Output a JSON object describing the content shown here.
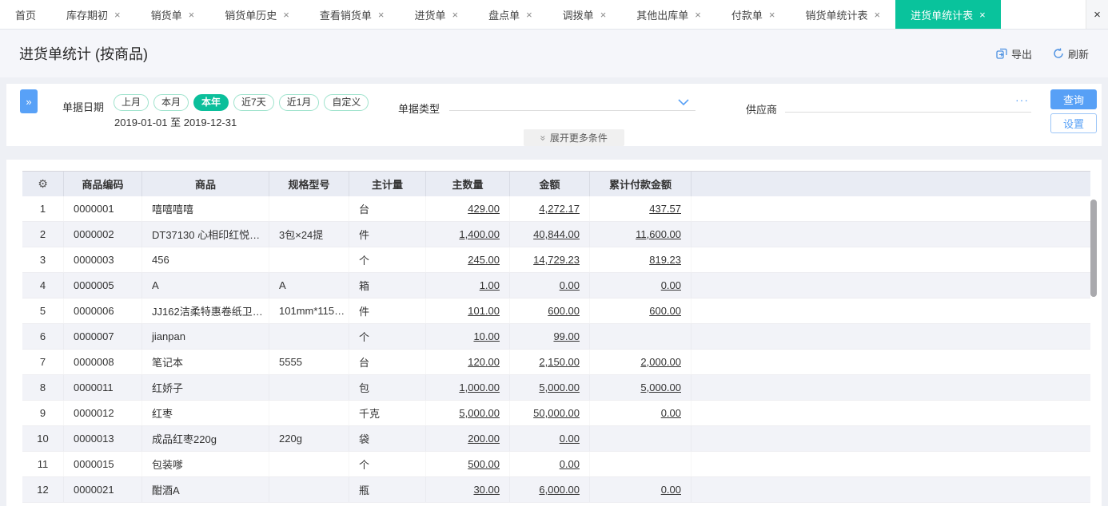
{
  "tabbar": {
    "tabs": [
      {
        "label": "首页",
        "closable": false,
        "active": false
      },
      {
        "label": "库存期初",
        "closable": true,
        "active": false
      },
      {
        "label": "销货单",
        "closable": true,
        "active": false
      },
      {
        "label": "销货单历史",
        "closable": true,
        "active": false
      },
      {
        "label": "查看销货单",
        "closable": true,
        "active": false
      },
      {
        "label": "进货单",
        "closable": true,
        "active": false
      },
      {
        "label": "盘点单",
        "closable": true,
        "active": false
      },
      {
        "label": "调拨单",
        "closable": true,
        "active": false
      },
      {
        "label": "其他出库单",
        "closable": true,
        "active": false
      },
      {
        "label": "付款单",
        "closable": true,
        "active": false
      },
      {
        "label": "销货单统计表",
        "closable": true,
        "active": false
      },
      {
        "label": "进货单统计表",
        "closable": true,
        "active": true
      }
    ],
    "close_all_icon": "×"
  },
  "header": {
    "title": "进货单统计 (按商品)",
    "export_label": "导出",
    "refresh_label": "刷新"
  },
  "filters": {
    "collapse_icon": "»",
    "date_label": "单据日期",
    "date_presets": [
      {
        "label": "上月",
        "selected": false
      },
      {
        "label": "本月",
        "selected": false
      },
      {
        "label": "本年",
        "selected": true
      },
      {
        "label": "近7天",
        "selected": false
      },
      {
        "label": "近1月",
        "selected": false
      },
      {
        "label": "自定义",
        "selected": false
      }
    ],
    "date_range": "2019-01-01 至 2019-12-31",
    "doc_type_label": "单据类型",
    "supplier_label": "供应商",
    "supplier_more_icon": "···",
    "query_button": "查询",
    "settings_button": "设置",
    "expand_more_label": "展开更多条件",
    "expand_more_icon": "»"
  },
  "table": {
    "gear_icon": "⚙",
    "columns": [
      "商品编码",
      "商品",
      "规格型号",
      "主计量",
      "主数量",
      "金额",
      "累计付款金额"
    ],
    "rows": [
      {
        "index": "1",
        "code": "0000001",
        "name": "嘻嘻嘻嘻",
        "spec": "",
        "unit": "台",
        "qty": "429.00",
        "amount": "4,272.17",
        "paid": "437.57"
      },
      {
        "index": "2",
        "code": "0000002",
        "name": "DT37130 心相印红悦…",
        "spec": "3包×24提",
        "unit": "件",
        "qty": "1,400.00",
        "amount": "40,844.00",
        "paid": "11,600.00"
      },
      {
        "index": "3",
        "code": "0000003",
        "name": "456",
        "spec": "",
        "unit": "个",
        "qty": "245.00",
        "amount": "14,729.23",
        "paid": "819.23"
      },
      {
        "index": "4",
        "code": "0000005",
        "name": "A",
        "spec": "A",
        "unit": "箱",
        "qty": "1.00",
        "amount": "0.00",
        "paid": "0.00"
      },
      {
        "index": "5",
        "code": "0000006",
        "name": "JJ162洁柔特惠卷纸卫…",
        "spec": "101mm*115…",
        "unit": "件",
        "qty": "101.00",
        "amount": "600.00",
        "paid": "600.00"
      },
      {
        "index": "6",
        "code": "0000007",
        "name": "jianpan",
        "spec": "",
        "unit": "个",
        "qty": "10.00",
        "amount": "99.00",
        "paid": ""
      },
      {
        "index": "7",
        "code": "0000008",
        "name": "笔记本",
        "spec": "5555",
        "unit": "台",
        "qty": "120.00",
        "amount": "2,150.00",
        "paid": "2,000.00"
      },
      {
        "index": "8",
        "code": "0000011",
        "name": "红娇子",
        "spec": "",
        "unit": "包",
        "qty": "1,000.00",
        "amount": "5,000.00",
        "paid": "5,000.00"
      },
      {
        "index": "9",
        "code": "0000012",
        "name": "红枣",
        "spec": "",
        "unit": "千克",
        "qty": "5,000.00",
        "amount": "50,000.00",
        "paid": "0.00"
      },
      {
        "index": "10",
        "code": "0000013",
        "name": "成品红枣220g",
        "spec": "220g",
        "unit": "袋",
        "qty": "200.00",
        "amount": "0.00",
        "paid": ""
      },
      {
        "index": "11",
        "code": "0000015",
        "name": "包装嗲",
        "spec": "",
        "unit": "个",
        "qty": "500.00",
        "amount": "0.00",
        "paid": ""
      },
      {
        "index": "12",
        "code": "0000021",
        "name": "酣酒A",
        "spec": "",
        "unit": "瓶",
        "qty": "30.00",
        "amount": "6,000.00",
        "paid": "0.00"
      }
    ]
  },
  "colors": {
    "accent_teal": "#09c39c",
    "accent_blue": "#57a0f6",
    "header_bg": "#e9ecf4",
    "row_alt_bg": "#f2f3f8"
  }
}
